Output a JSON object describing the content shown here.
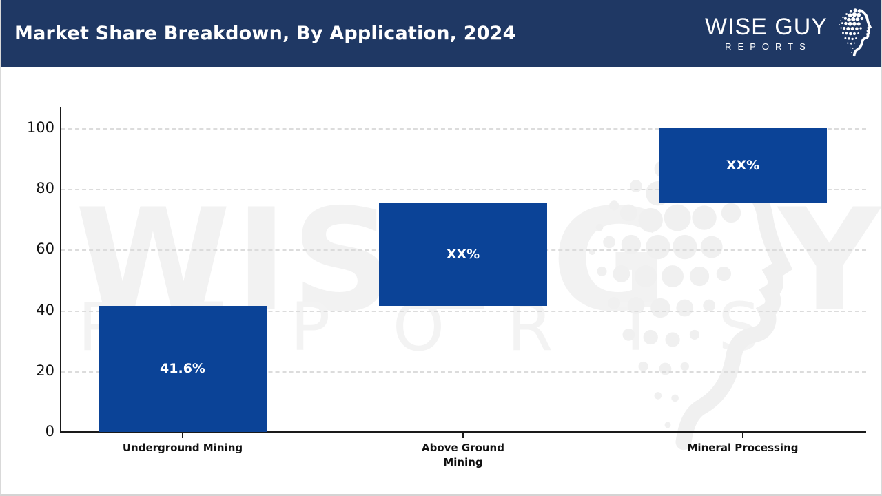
{
  "header": {
    "title": "Market Share Breakdown, By Application, 2024",
    "bg_color": "#1f3864",
    "logo": {
      "line1": "WISE GUY",
      "line2": "REPORTS"
    }
  },
  "watermark": {
    "line1": "WISE G  Y",
    "line2": "R E P O R T S"
  },
  "chart_data": {
    "type": "bar",
    "subtype": "floating-stacked-segments",
    "title": "Market Share Breakdown, By Application, 2024",
    "categories": [
      "Underground Mining",
      "Above Ground\nMining",
      "Mineral Processing"
    ],
    "segments": [
      {
        "category": "Underground Mining",
        "start": 0,
        "end": 41.6,
        "size": 41.6,
        "label": "41.6%"
      },
      {
        "category": "Above Ground Mining",
        "start": 41.6,
        "end": 75.5,
        "size": 33.9,
        "label": "XX%"
      },
      {
        "category": "Mineral Processing",
        "start": 75.5,
        "end": 100,
        "size": 24.5,
        "label": "XX%"
      }
    ],
    "values": [
      41.6,
      33.9,
      24.5
    ],
    "yticks": [
      0,
      20,
      40,
      60,
      80,
      100
    ],
    "ylim": [
      0,
      107
    ],
    "xlabel": "",
    "ylabel": "",
    "grid": "horizontal-dashed",
    "legend": "none",
    "bar_color": "#0b4397",
    "bar_label_color": "#ffffff",
    "axis_color": "#1a1a1a"
  }
}
